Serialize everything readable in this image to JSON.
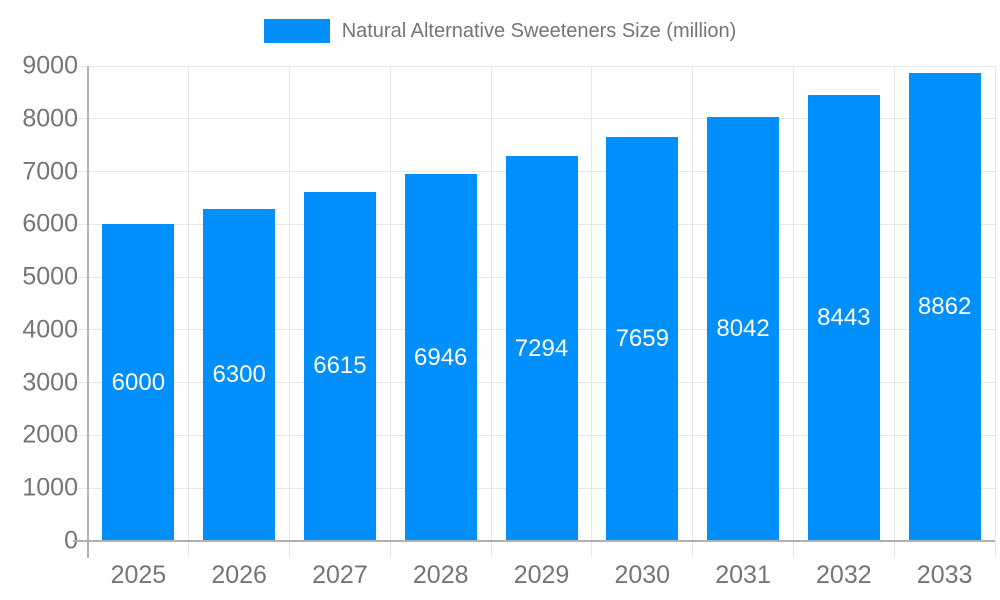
{
  "chart_data": {
    "type": "bar",
    "title": "Natural Alternative Sweeteners Size (million)",
    "legend": {
      "label": "Natural Alternative Sweeteners Size (million)",
      "position": "top-center"
    },
    "categories": [
      "2025",
      "2026",
      "2027",
      "2028",
      "2029",
      "2030",
      "2031",
      "2032",
      "2033"
    ],
    "series": [
      {
        "name": "Natural Alternative Sweeteners Size (million)",
        "values": [
          6000,
          6300,
          6615,
          6946,
          7294,
          7659,
          8042,
          8443,
          8862
        ]
      }
    ],
    "xlabel": "",
    "ylabel": "",
    "ylim": [
      0,
      9000
    ],
    "ytick_step": 1000,
    "yticks": [
      0,
      1000,
      2000,
      3000,
      4000,
      5000,
      6000,
      7000,
      8000,
      9000
    ],
    "grid": "on",
    "value_labels": "inside-center",
    "colors": {
      "bar": "#008FFB",
      "value_label": "#ffffff",
      "axis_label": "#757575",
      "legend_label": "#757575",
      "gridline": "#e7e7e7",
      "axis_line": "#b1b1b1",
      "background": "#ffffff"
    }
  }
}
